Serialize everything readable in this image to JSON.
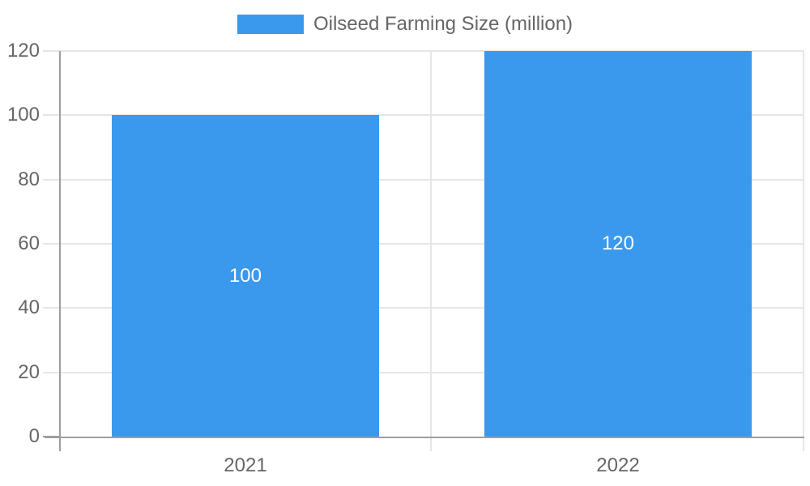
{
  "legend": {
    "label": "Oilseed Farming Size (million)"
  },
  "chart_data": {
    "type": "bar",
    "title": "",
    "categories": [
      "2021",
      "2022"
    ],
    "series": [
      {
        "name": "Oilseed Farming Size (million)",
        "values": [
          100,
          120
        ]
      }
    ],
    "bar_labels": [
      "100",
      "120"
    ],
    "xlabel": "",
    "ylabel": "",
    "ylim": [
      0,
      120
    ],
    "yticks": [
      0,
      20,
      40,
      60,
      80,
      100,
      120
    ],
    "grid": true,
    "legend_position": "top",
    "bar_width_fraction": 0.7174,
    "colors": {
      "bar": "#3a99ec",
      "bar_label": "#ffffff",
      "axis": "#9e9e9e",
      "grid": "#e6e6e6",
      "text": "#666666",
      "background": "#ffffff"
    }
  }
}
